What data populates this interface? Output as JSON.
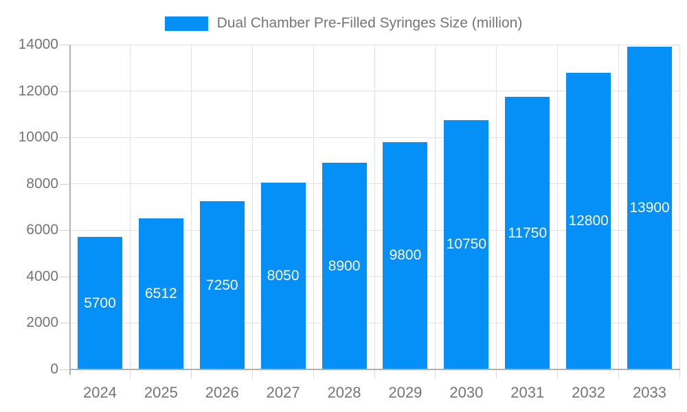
{
  "legend": {
    "swatch_color": "#0590f8",
    "label": "Dual Chamber Pre-Filled Syringes Size (million)"
  },
  "chart_data": {
    "type": "bar",
    "title": "Dual Chamber Pre-Filled Syringes Size (million)",
    "categories": [
      "2024",
      "2025",
      "2026",
      "2027",
      "2028",
      "2029",
      "2030",
      "2031",
      "2032",
      "2033"
    ],
    "series": [
      {
        "name": "Dual Chamber Pre-Filled Syringes Size (million)",
        "values": [
          5700,
          6512,
          7250,
          8050,
          8900,
          9800,
          10750,
          11750,
          12800,
          13900
        ]
      }
    ],
    "value_labels": [
      "5700",
      "6512",
      "7250",
      "8050",
      "8900",
      "9800",
      "10750",
      "11750",
      "12800",
      "13900"
    ],
    "xlabel": "",
    "ylabel": "",
    "ylim": [
      0,
      14000
    ],
    "y_ticks": [
      0,
      2000,
      4000,
      6000,
      8000,
      10000,
      12000,
      14000
    ],
    "y_tick_labels": [
      "0",
      "2000",
      "4000",
      "6000",
      "8000",
      "10000",
      "12000",
      "14000"
    ],
    "grid": "on",
    "legend_position": "top-center",
    "bar_color": "#0590f8",
    "value_label_color": "#ffffff",
    "axis_text_color": "#757575"
  }
}
